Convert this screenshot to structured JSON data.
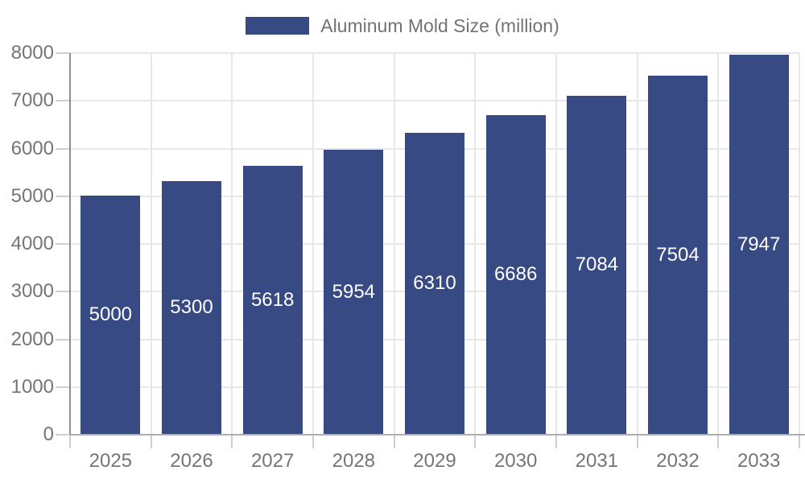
{
  "legend": {
    "label": "Aluminum Mold Size (million)"
  },
  "colors": {
    "bar": "#384a83",
    "bar_label": "#ffffff",
    "axis_label": "#757575",
    "legend_text": "#737373",
    "grid": "#e7e7e7",
    "y_axis_line": "#8f8f8f",
    "x_axis_line": "#aeaeae",
    "tick": "#cfcfcf",
    "background": "#ffffff"
  },
  "chart_data": {
    "type": "bar",
    "title": "",
    "categories": [
      "2025",
      "2026",
      "2027",
      "2028",
      "2029",
      "2030",
      "2031",
      "2032",
      "2033"
    ],
    "series": [
      {
        "name": "Aluminum Mold Size (million)",
        "values": [
          5000,
          5300,
          5618,
          5954,
          6310,
          6686,
          7084,
          7504,
          7947
        ],
        "color": "#384a83"
      }
    ],
    "xlabel": "",
    "ylabel": "",
    "ylim": [
      0,
      8000
    ],
    "ytick_step": 1000,
    "ytick_labels": [
      "0",
      "1000",
      "2000",
      "3000",
      "4000",
      "5000",
      "6000",
      "7000",
      "8000"
    ],
    "grid": true,
    "legend_position": "top",
    "value_labels": "inside-center"
  }
}
